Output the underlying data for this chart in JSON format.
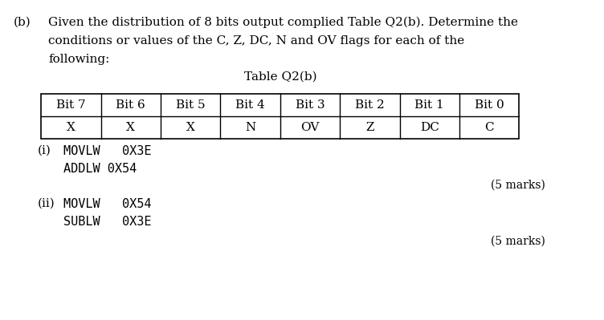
{
  "bg_color": "#ffffff",
  "label_b": "(b)",
  "text_line1": "Given the distribution of 8 bits output complied Table Q2(b). Determine the",
  "text_line2": "conditions or values of the C, Z, DC, N and OV flags for each of the",
  "text_line3": "following:",
  "table_title": "Table Q2(b)",
  "table_headers": [
    "Bit 7",
    "Bit 6",
    "Bit 5",
    "Bit 4",
    "Bit 3",
    "Bit 2",
    "Bit 1",
    "Bit 0"
  ],
  "table_values": [
    "X",
    "X",
    "X",
    "N",
    "OV",
    "Z",
    "DC",
    "C"
  ],
  "sub_i": "(i)",
  "sub_i_line1": "MOVLW   0X3E",
  "sub_i_line2": "ADDLW 0X54",
  "marks_i": "(5 marks)",
  "sub_ii": "(ii)",
  "sub_ii_line1": "MOVLW   0X54",
  "sub_ii_line2": "SUBLW   0X3E",
  "marks_ii": "(5 marks)",
  "font_family": "serif",
  "font_family_mono": "monospace",
  "font_size_body": 11,
  "font_size_table": 11,
  "font_size_marks": 10,
  "text_color": "#000000"
}
